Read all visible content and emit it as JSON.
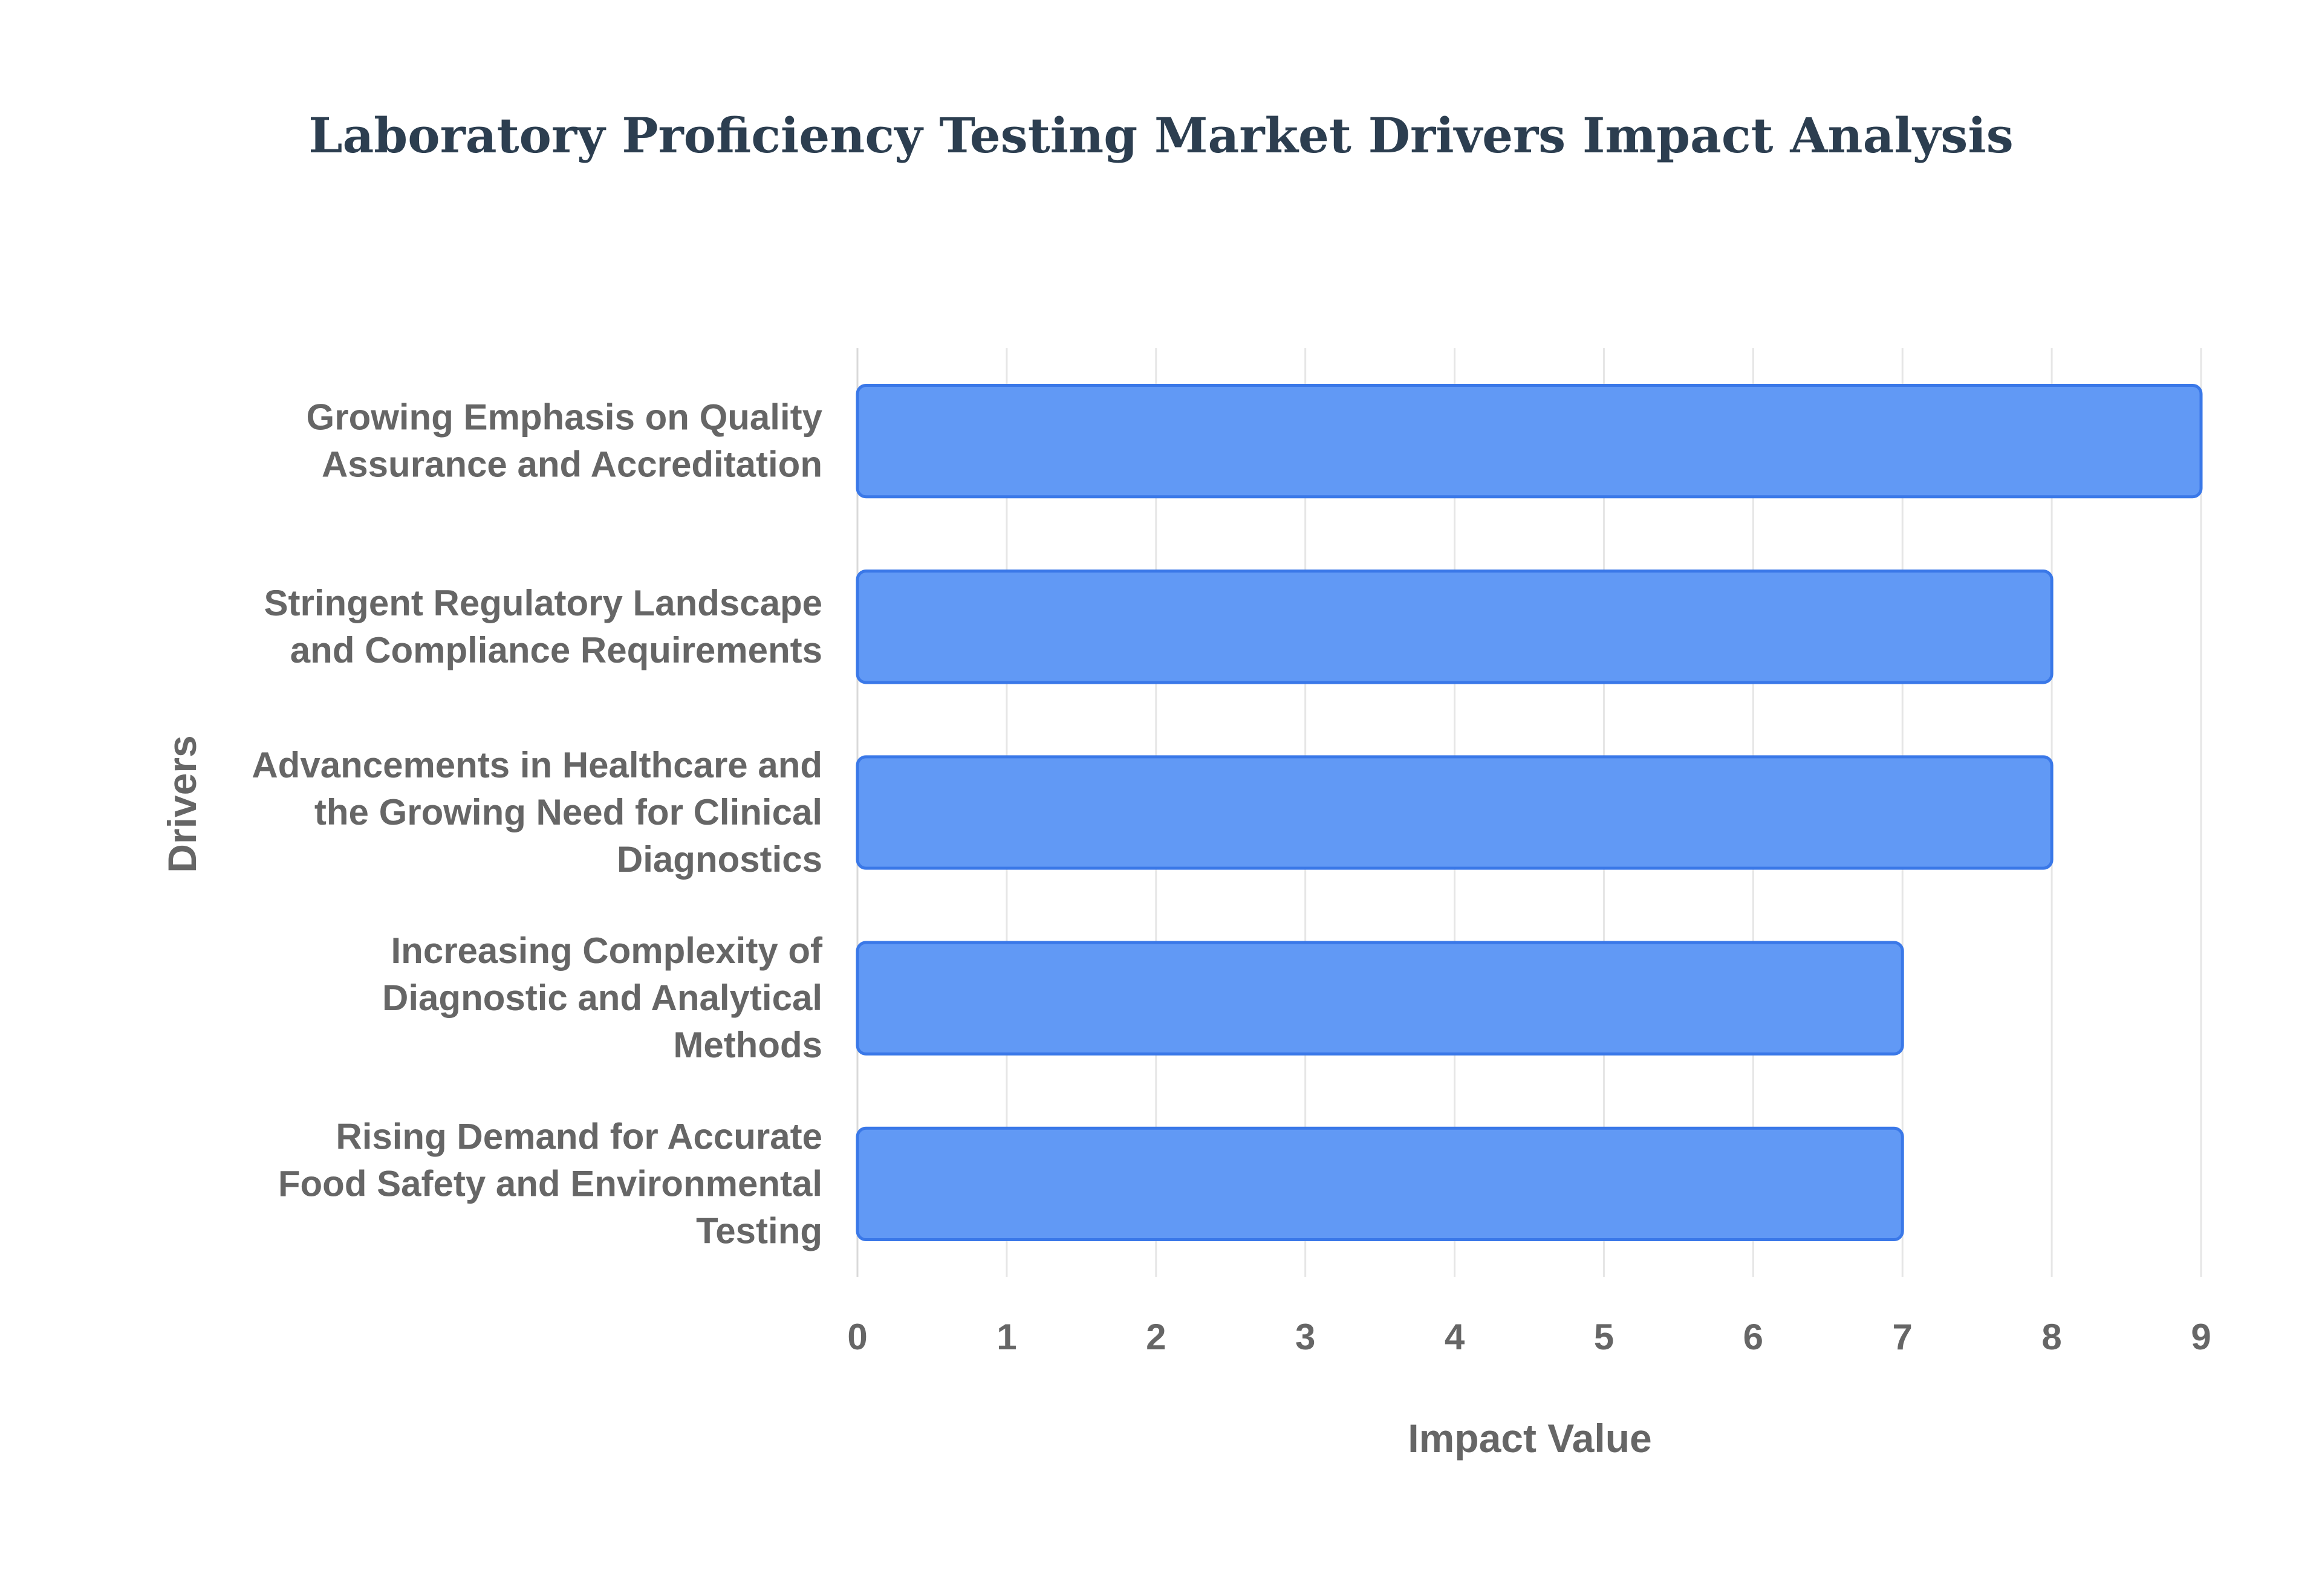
{
  "chart_data": {
    "type": "bar",
    "orientation": "horizontal",
    "title": "Laboratory Proficiency Testing Market Drivers Impact Analysis",
    "xlabel": "Impact Value",
    "ylabel": "Drivers",
    "xlim": [
      0,
      9
    ],
    "x_ticks": [
      "0",
      "1",
      "2",
      "3",
      "4",
      "5",
      "6",
      "7",
      "8",
      "9"
    ],
    "grid": true,
    "categories": [
      [
        "Growing Emphasis on Quality",
        "Assurance and Accreditation"
      ],
      [
        "Stringent Regulatory Landscape",
        "and Compliance Requirements"
      ],
      [
        "Advancements in Healthcare and",
        "the Growing Need for Clinical",
        "Diagnostics"
      ],
      [
        "Increasing Complexity of",
        "Diagnostic and Analytical",
        "Methods"
      ],
      [
        "Rising Demand for Accurate",
        "Food Safety and Environmental",
        "Testing"
      ]
    ],
    "values": [
      9,
      8,
      8,
      7,
      7
    ],
    "colors": {
      "bar_fill": "#6199f5",
      "bar_stroke": "#3a78e8",
      "title": "#2c3e50",
      "text": "#666666"
    }
  }
}
